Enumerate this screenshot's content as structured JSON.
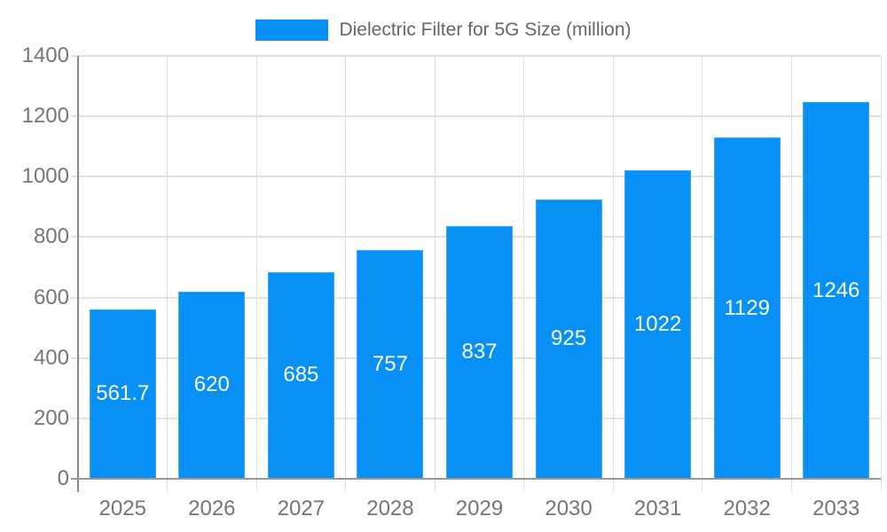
{
  "chart_data": {
    "type": "bar",
    "title": "Dielectric Filter for 5G Size (million)",
    "categories": [
      "2025",
      "2026",
      "2027",
      "2028",
      "2029",
      "2030",
      "2031",
      "2032",
      "2033"
    ],
    "values": [
      561.7,
      620,
      685,
      757,
      837,
      925,
      1022,
      1129,
      1246
    ],
    "value_labels": [
      "561.7",
      "620",
      "685",
      "757",
      "837",
      "925",
      "1022",
      "1129",
      "1246"
    ],
    "xlabel": "",
    "ylabel": "",
    "ylim": [
      0,
      1400
    ],
    "yticks": [
      0,
      200,
      400,
      600,
      800,
      1000,
      1200,
      1400
    ],
    "grid": true,
    "legend_position": "top",
    "bar_label_position": "inside-center"
  },
  "colors": {
    "bar": "#0890f5",
    "bar_edge": "#3aa5fb",
    "bar_label": "#ffffff",
    "axis_text": "#757575",
    "legend_text": "#666666",
    "gridline": "#e0e0e0",
    "axis_line": "#999999"
  }
}
